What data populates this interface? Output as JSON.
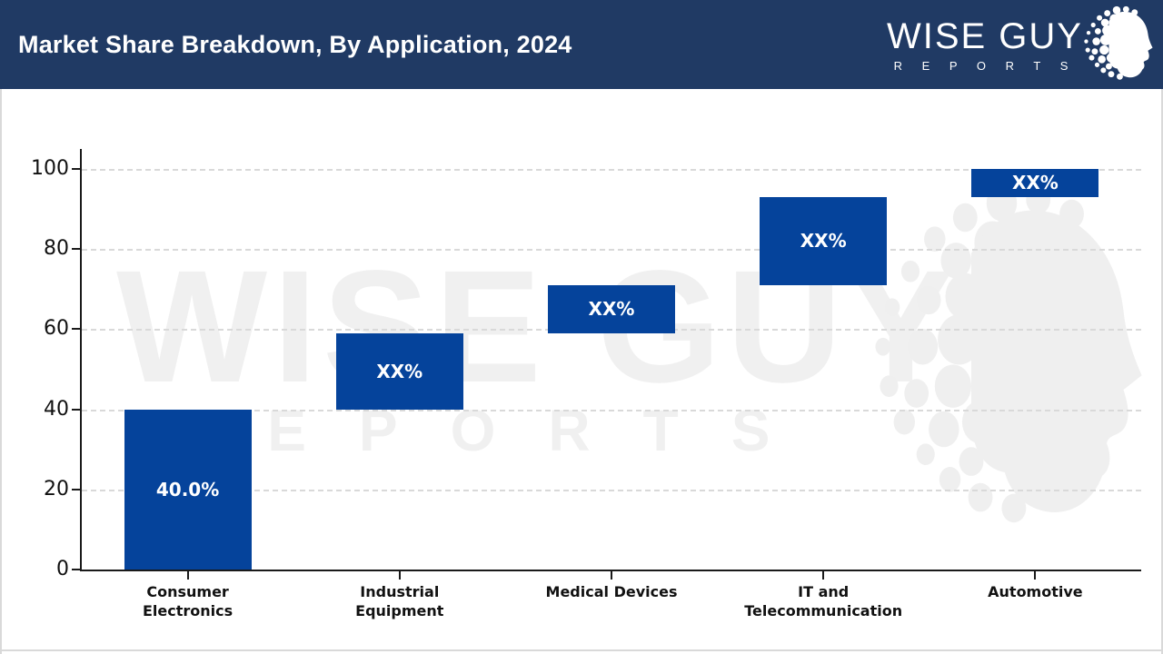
{
  "header": {
    "title": "Market Share Breakdown, By Application, 2024",
    "background_color": "#203A64",
    "logo": {
      "line1": "WISE GUY",
      "line2": "R E P O R T S"
    }
  },
  "watermark": {
    "line1": "WISE GUY",
    "line2": "REPORTS"
  },
  "chart_data": {
    "type": "bar",
    "subtype": "waterfall",
    "title": "Market Share Breakdown, By Application, 2024",
    "xlabel": "",
    "ylabel": "",
    "categories": [
      "Consumer Electronics",
      "Industrial Equipment",
      "Medical Devices",
      "IT and Telecommunication",
      "Automotive"
    ],
    "category_label_lines": [
      [
        "Consumer",
        "Electronics"
      ],
      [
        "Industrial",
        "Equipment"
      ],
      [
        "Medical Devices"
      ],
      [
        "IT and",
        "Telecommunication"
      ],
      [
        "Automotive"
      ]
    ],
    "series": [
      {
        "category": "Consumer Electronics",
        "start": 0,
        "end": 40,
        "value": 40,
        "label": "40.0%"
      },
      {
        "category": "Industrial Equipment",
        "start": 40,
        "end": 59,
        "value": 19,
        "label": "XX%"
      },
      {
        "category": "Medical Devices",
        "start": 59,
        "end": 71,
        "value": 12,
        "label": "XX%"
      },
      {
        "category": "IT and Telecommunication",
        "start": 71,
        "end": 93,
        "value": 22,
        "label": "XX%"
      },
      {
        "category": "Automotive",
        "start": 93,
        "end": 100,
        "value": 7,
        "label": "XX%"
      }
    ],
    "yticks": [
      0,
      20,
      40,
      60,
      80,
      100
    ],
    "ylim": [
      0,
      105
    ],
    "bar_width_fraction": 0.6,
    "bar_color": "#05439B",
    "grid": "horizontal dashed",
    "grid_color": "#d9d9d9",
    "legend": "none"
  },
  "frame_color": "#d9d9d9"
}
